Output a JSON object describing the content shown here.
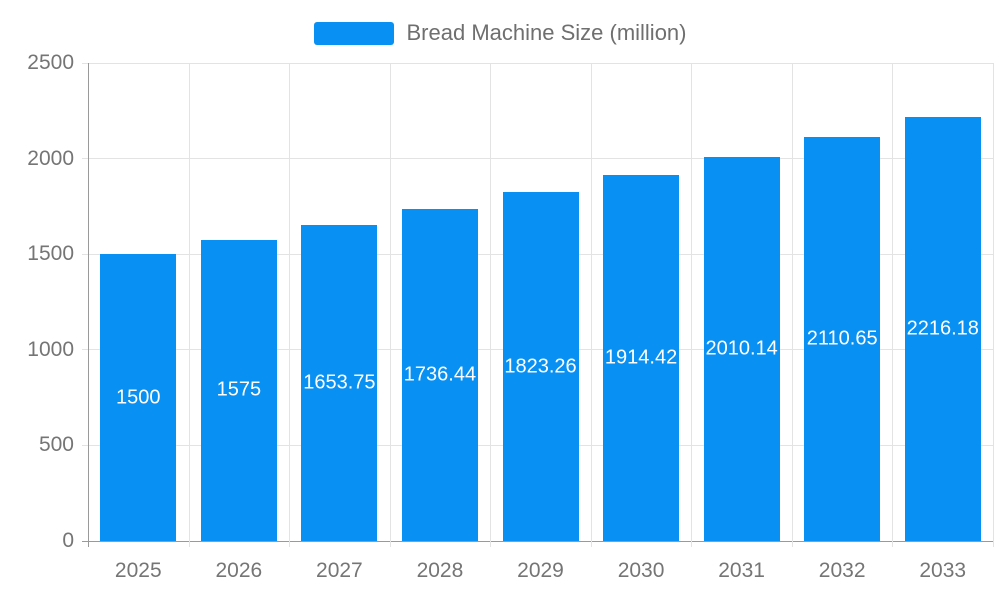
{
  "legend": {
    "label": "Bread Machine Size (million)"
  },
  "colors": {
    "bar": "#0990f3",
    "grid": "#e3e3e3",
    "axis": "#9a9a9a",
    "tick_text": "#757575",
    "legend_text": "#6f6f6f",
    "bar_label": "#ffffff",
    "background": "#ffffff"
  },
  "chart_data": {
    "type": "bar",
    "title": "Bread Machine Size (million)",
    "categories": [
      "2025",
      "2026",
      "2027",
      "2028",
      "2029",
      "2030",
      "2031",
      "2032",
      "2033"
    ],
    "values": [
      1500,
      1575,
      1653.75,
      1736.44,
      1823.26,
      1914.42,
      2010.14,
      2110.65,
      2216.18
    ],
    "value_labels": [
      "1500",
      "1575",
      "1653.75",
      "1736.44",
      "1823.26",
      "1914.42",
      "2010.14",
      "2110.65",
      "2216.18"
    ],
    "xlabel": "",
    "ylabel": "",
    "ylim": [
      0,
      2500
    ],
    "y_ticks": [
      0,
      500,
      1000,
      1500,
      2000,
      2500
    ],
    "grid": true,
    "legend_position": "top"
  }
}
